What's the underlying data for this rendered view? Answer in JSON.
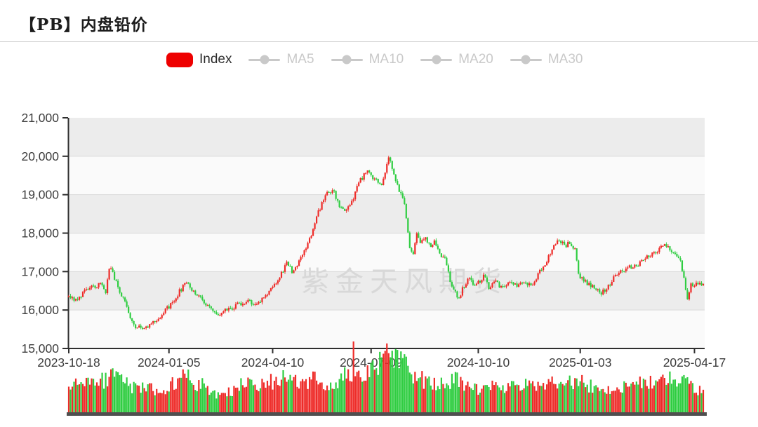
{
  "header": {
    "title": "【PB】内盘铅价"
  },
  "legend": {
    "items": [
      {
        "label": "Index",
        "type": "swatch",
        "color": "#ee0000",
        "active": true
      },
      {
        "label": "MA5",
        "type": "line-dot",
        "color": "#c9c9c9",
        "active": false
      },
      {
        "label": "MA10",
        "type": "line-dot",
        "color": "#c9c9c9",
        "active": false
      },
      {
        "label": "MA20",
        "type": "line-dot",
        "color": "#c9c9c9",
        "active": false
      },
      {
        "label": "MA30",
        "type": "line-dot",
        "color": "#c9c9c9",
        "active": false
      }
    ]
  },
  "watermark": {
    "text": "紫金天风期货",
    "color": "#d8d8d8"
  },
  "chart_data": {
    "type": "candlestick+volume",
    "title": "【PB】内盘铅价",
    "series_name": "Index",
    "legend_entries": [
      "Index",
      "MA5",
      "MA10",
      "MA20",
      "MA30"
    ],
    "ma_lines_visible": false,
    "ylim": [
      15000,
      21000
    ],
    "y_ticks": [
      15000,
      16000,
      17000,
      18000,
      19000,
      20000,
      21000
    ],
    "x_tick_labels": [
      "2023-10-18",
      "2024-01-05",
      "2024-04-10",
      "2024-07-09",
      "2024-10-10",
      "2025-01-03",
      "2025-04-17"
    ],
    "x_tick_indices": [
      0,
      57,
      116,
      172,
      233,
      291,
      356
    ],
    "num_candles": 362,
    "up_color": "#ee2b28",
    "down_color": "#2fcd41",
    "band_colors": [
      "#ececec",
      "#fafafa"
    ],
    "grid_color": "#d9d9d9",
    "axis_color": "#2f2f2f",
    "volume_baseline_color": "#4f4f4f",
    "price_keyframes_index_close": [
      [
        0,
        16400
      ],
      [
        3,
        16280
      ],
      [
        6,
        16350
      ],
      [
        10,
        16500
      ],
      [
        14,
        16620
      ],
      [
        18,
        16650
      ],
      [
        21,
        16480
      ],
      [
        23,
        17100
      ],
      [
        25,
        16950
      ],
      [
        28,
        16600
      ],
      [
        31,
        16320
      ],
      [
        34,
        15900
      ],
      [
        38,
        15500
      ],
      [
        42,
        15560
      ],
      [
        46,
        15600
      ],
      [
        50,
        15750
      ],
      [
        53,
        15900
      ],
      [
        57,
        16080
      ],
      [
        60,
        16250
      ],
      [
        63,
        16480
      ],
      [
        67,
        16720
      ],
      [
        70,
        16550
      ],
      [
        75,
        16320
      ],
      [
        80,
        16050
      ],
      [
        83,
        15900
      ],
      [
        87,
        15920
      ],
      [
        92,
        16050
      ],
      [
        97,
        16150
      ],
      [
        102,
        16220
      ],
      [
        106,
        16150
      ],
      [
        110,
        16300
      ],
      [
        113,
        16430
      ],
      [
        116,
        16600
      ],
      [
        120,
        16850
      ],
      [
        124,
        17200
      ],
      [
        127,
        17020
      ],
      [
        130,
        17150
      ],
      [
        133,
        17400
      ],
      [
        137,
        17850
      ],
      [
        141,
        18400
      ],
      [
        144,
        18800
      ],
      [
        147,
        19050
      ],
      [
        151,
        19100
      ],
      [
        154,
        18650
      ],
      [
        158,
        18550
      ],
      [
        161,
        18800
      ],
      [
        165,
        19350
      ],
      [
        168,
        19500
      ],
      [
        170,
        19650
      ],
      [
        172,
        19500
      ],
      [
        175,
        19400
      ],
      [
        178,
        19300
      ],
      [
        180,
        19600
      ],
      [
        182,
        19980
      ],
      [
        184,
        19650
      ],
      [
        188,
        19100
      ],
      [
        191,
        18750
      ],
      [
        194,
        17600
      ],
      [
        196,
        17500
      ],
      [
        198,
        18050
      ],
      [
        200,
        17750
      ],
      [
        203,
        17850
      ],
      [
        206,
        17650
      ],
      [
        208,
        17780
      ],
      [
        211,
        17450
      ],
      [
        214,
        17300
      ],
      [
        216,
        16950
      ],
      [
        218,
        16600
      ],
      [
        222,
        16320
      ],
      [
        224,
        16550
      ],
      [
        228,
        16820
      ],
      [
        231,
        16650
      ],
      [
        233,
        16700
      ],
      [
        236,
        16880
      ],
      [
        239,
        16600
      ],
      [
        243,
        16720
      ],
      [
        247,
        16560
      ],
      [
        251,
        16700
      ],
      [
        255,
        16640
      ],
      [
        259,
        16760
      ],
      [
        263,
        16620
      ],
      [
        266,
        16850
      ],
      [
        269,
        17050
      ],
      [
        273,
        17380
      ],
      [
        276,
        17680
      ],
      [
        279,
        17830
      ],
      [
        282,
        17660
      ],
      [
        285,
        17760
      ],
      [
        288,
        17550
      ],
      [
        290,
        16950
      ],
      [
        293,
        16750
      ],
      [
        296,
        16680
      ],
      [
        300,
        16560
      ],
      [
        302,
        16430
      ],
      [
        305,
        16520
      ],
      [
        308,
        16680
      ],
      [
        311,
        16880
      ],
      [
        315,
        17050
      ],
      [
        319,
        17100
      ],
      [
        323,
        17140
      ],
      [
        327,
        17280
      ],
      [
        331,
        17430
      ],
      [
        335,
        17560
      ],
      [
        339,
        17680
      ],
      [
        342,
        17600
      ],
      [
        345,
        17460
      ],
      [
        348,
        17350
      ],
      [
        350,
        16800
      ],
      [
        352,
        16280
      ],
      [
        354,
        16650
      ],
      [
        356,
        16620
      ],
      [
        358,
        16700
      ],
      [
        361,
        16680
      ]
    ],
    "volume_envelope_index_height": [
      [
        0,
        38
      ],
      [
        5,
        42
      ],
      [
        10,
        40
      ],
      [
        15,
        44
      ],
      [
        20,
        46
      ],
      [
        25,
        52
      ],
      [
        29,
        50
      ],
      [
        33,
        40
      ],
      [
        38,
        34
      ],
      [
        43,
        38
      ],
      [
        48,
        34
      ],
      [
        53,
        30
      ],
      [
        57,
        36
      ],
      [
        62,
        46
      ],
      [
        67,
        54
      ],
      [
        70,
        44
      ],
      [
        75,
        40
      ],
      [
        80,
        32
      ],
      [
        85,
        26
      ],
      [
        90,
        28
      ],
      [
        95,
        34
      ],
      [
        100,
        42
      ],
      [
        104,
        44
      ],
      [
        108,
        38
      ],
      [
        112,
        42
      ],
      [
        116,
        44
      ],
      [
        120,
        46
      ],
      [
        124,
        50
      ],
      [
        128,
        44
      ],
      [
        132,
        40
      ],
      [
        136,
        44
      ],
      [
        140,
        48
      ],
      [
        144,
        44
      ],
      [
        148,
        40
      ],
      [
        152,
        38
      ],
      [
        156,
        50
      ],
      [
        160,
        56
      ],
      [
        164,
        54
      ],
      [
        168,
        56
      ],
      [
        172,
        60
      ],
      [
        176,
        68
      ],
      [
        180,
        78
      ],
      [
        184,
        82
      ],
      [
        188,
        76
      ],
      [
        192,
        66
      ],
      [
        196,
        56
      ],
      [
        200,
        48
      ],
      [
        205,
        42
      ],
      [
        210,
        38
      ],
      [
        215,
        42
      ],
      [
        220,
        46
      ],
      [
        225,
        40
      ],
      [
        228,
        34
      ],
      [
        232,
        32
      ],
      [
        236,
        38
      ],
      [
        240,
        40
      ],
      [
        244,
        36
      ],
      [
        248,
        34
      ],
      [
        252,
        36
      ],
      [
        256,
        34
      ],
      [
        260,
        40
      ],
      [
        264,
        36
      ],
      [
        268,
        40
      ],
      [
        272,
        44
      ],
      [
        276,
        46
      ],
      [
        280,
        44
      ],
      [
        284,
        42
      ],
      [
        288,
        44
      ],
      [
        291,
        46
      ],
      [
        294,
        42
      ],
      [
        298,
        36
      ],
      [
        302,
        32
      ],
      [
        306,
        30
      ],
      [
        310,
        34
      ],
      [
        314,
        36
      ],
      [
        318,
        38
      ],
      [
        322,
        40
      ],
      [
        326,
        42
      ],
      [
        330,
        42
      ],
      [
        334,
        44
      ],
      [
        338,
        46
      ],
      [
        342,
        48
      ],
      [
        346,
        42
      ],
      [
        350,
        44
      ],
      [
        353,
        38
      ],
      [
        356,
        34
      ],
      [
        359,
        30
      ],
      [
        361,
        26
      ]
    ],
    "volume_spike": {
      "index": 162,
      "height": 101,
      "color": "#ee2b28"
    }
  }
}
